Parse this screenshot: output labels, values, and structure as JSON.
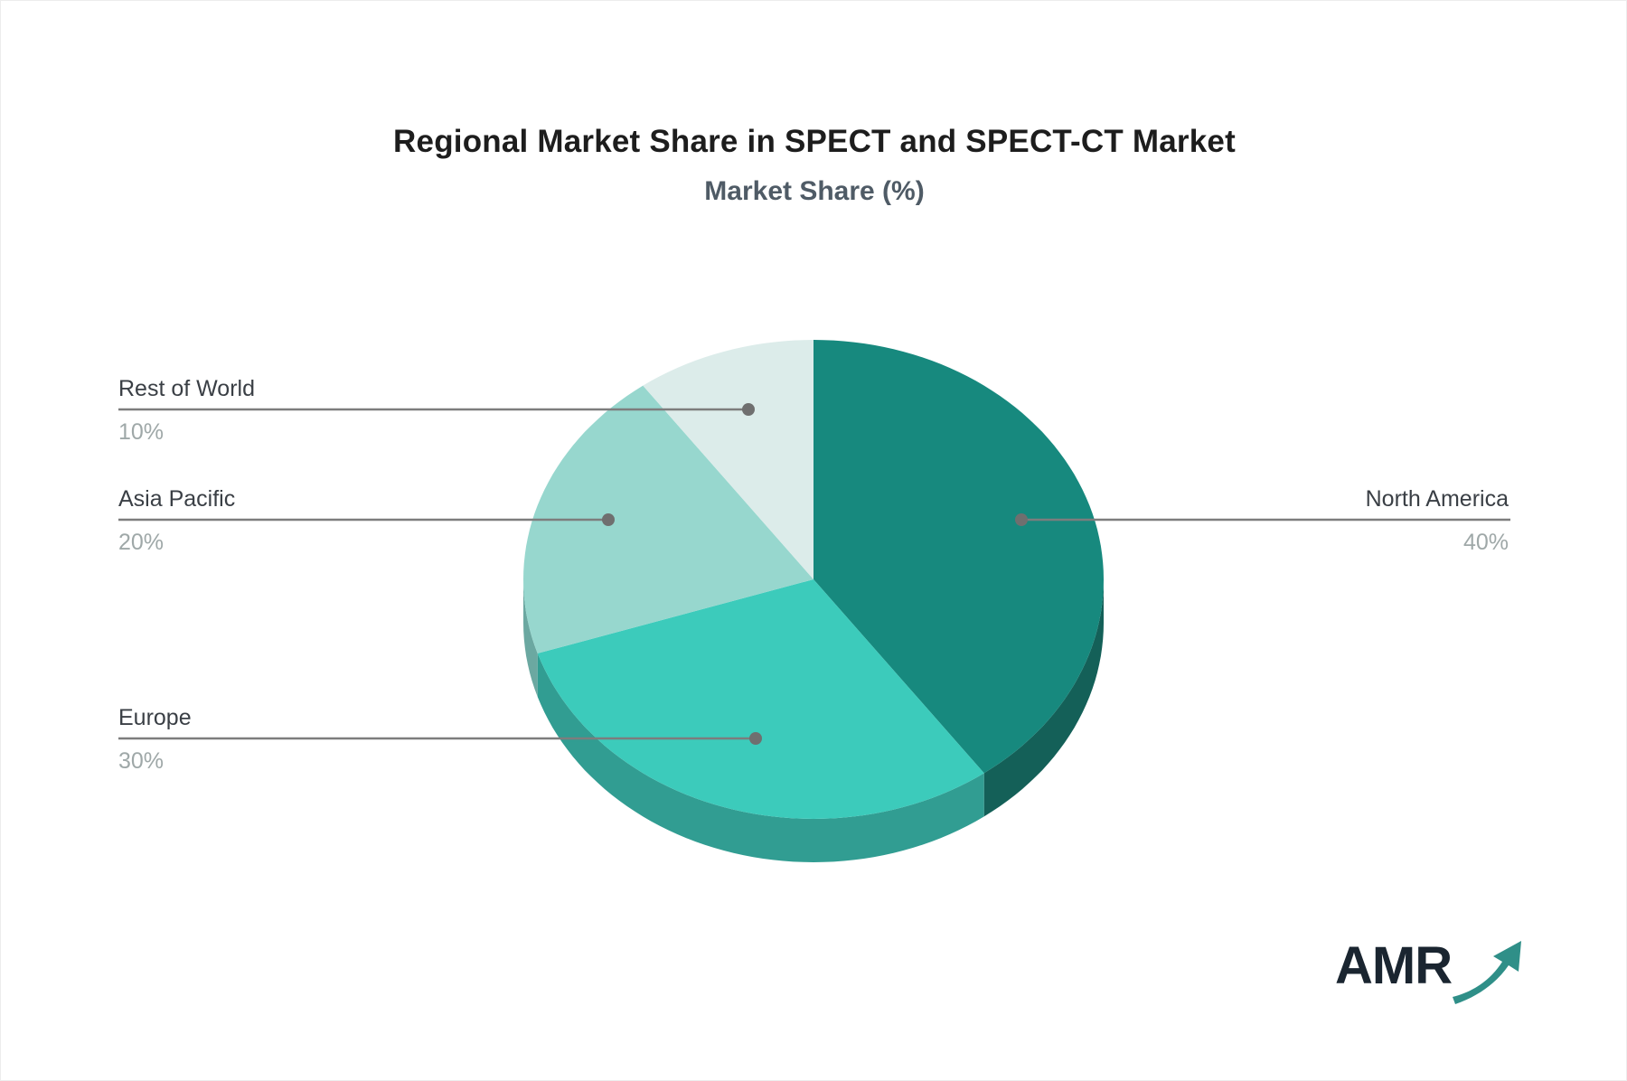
{
  "title": "Regional Market Share in SPECT and SPECT-CT Market",
  "subtitle": "Market Share (%)",
  "logo": {
    "text": "AMR",
    "text_color": "#1A2530",
    "arrow_color": "#2F8F88"
  },
  "chart_data": {
    "type": "pie",
    "title": "Regional Market Share in SPECT and SPECT-CT Market",
    "subtitle": "Market Share (%)",
    "unit": "percent",
    "style": "3d",
    "start_angle_deg": 0,
    "direction": "clockwise",
    "legend_position": "callout-labels",
    "slices": [
      {
        "label": "North America",
        "value": 40,
        "display_value": "40%",
        "color": "#17897E",
        "side_color": "#146058",
        "label_side": "right"
      },
      {
        "label": "Europe",
        "value": 30,
        "display_value": "30%",
        "color": "#3CCBBB",
        "side_color": "#319D92",
        "label_side": "left"
      },
      {
        "label": "Asia Pacific",
        "value": 20,
        "display_value": "20%",
        "color": "#97D7CE",
        "side_color": "#6BA8A1",
        "label_side": "left"
      },
      {
        "label": "Rest of World",
        "value": 10,
        "display_value": "10%",
        "color": "#DCECEA",
        "side_color": "#C3DBD7",
        "label_side": "left"
      }
    ],
    "leader_line_color": "#7D7D7D",
    "leader_dot_color": "#6F6F6F",
    "label_text_color": "#3A3F45",
    "value_text_color": "#9FA8A8"
  }
}
